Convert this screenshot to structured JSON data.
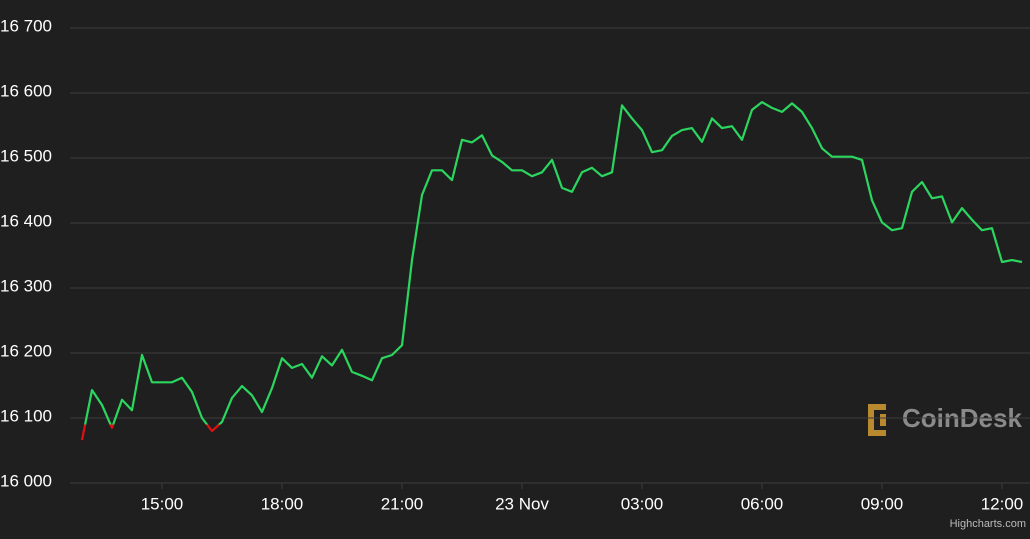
{
  "chart_data": {
    "type": "line",
    "x": [
      13,
      13.25,
      13.5,
      13.75,
      14,
      14.25,
      14.5,
      14.75,
      15,
      15.25,
      15.5,
      15.75,
      16,
      16.25,
      16.5,
      16.75,
      17,
      17.25,
      17.5,
      17.75,
      18,
      18.25,
      18.5,
      18.75,
      19,
      19.25,
      19.5,
      19.75,
      20,
      20.25,
      20.5,
      20.75,
      21,
      21.25,
      21.5,
      21.75,
      22,
      22.25,
      22.5,
      22.75,
      23,
      23.25,
      23.5,
      23.75,
      24,
      24.25,
      24.5,
      24.75,
      25,
      25.25,
      25.5,
      25.75,
      26,
      26.25,
      26.5,
      26.75,
      27,
      27.25,
      27.5,
      27.75,
      28,
      28.25,
      28.5,
      28.75,
      29,
      29.25,
      29.5,
      29.75,
      30,
      30.25,
      30.5,
      30.75,
      31,
      31.25,
      31.5,
      31.75,
      32,
      32.25,
      32.5,
      32.75,
      33,
      33.25,
      33.5,
      33.75,
      34,
      34.25,
      34.5,
      34.75,
      35,
      35.25,
      35.5,
      35.75,
      36,
      36.25,
      36.5
    ],
    "series": [
      {
        "color": "#2bd65f",
        "values": [
          16066,
          16143,
          16120,
          16085,
          16128,
          16112,
          16197,
          16155,
          16155,
          16155,
          16162,
          16140,
          16100,
          16080,
          16094,
          16131,
          16149,
          16135,
          16109,
          16146,
          16192,
          16177,
          16183,
          16162,
          16195,
          16181,
          16205,
          16171,
          16165,
          16158,
          16192,
          16197,
          16212,
          16343,
          16443,
          16481,
          16481,
          16466,
          16528,
          16524,
          16535,
          16504,
          16494,
          16481,
          16481,
          16472,
          16478,
          16497,
          16454,
          16448,
          16478,
          16485,
          16472,
          16478,
          16581,
          16561,
          16543,
          16509,
          16512,
          16534,
          16543,
          16546,
          16525,
          16561,
          16546,
          16549,
          16528,
          16574,
          16586,
          16577,
          16571,
          16584,
          16571,
          16546,
          16515,
          16502,
          16502,
          16502,
          16497,
          16435,
          16401,
          16389,
          16392,
          16448,
          16463,
          16438,
          16441,
          16401,
          16423,
          16405,
          16389,
          16392,
          16340,
          16343,
          16340
        ]
      }
    ],
    "threshold": 16090,
    "negative_color": "#e01010",
    "xlim": [
      12.95,
      36.7
    ],
    "xticks": [
      {
        "value": 15,
        "label": "15:00"
      },
      {
        "value": 18,
        "label": "18:00"
      },
      {
        "value": 21,
        "label": "21:00"
      },
      {
        "value": 24,
        "label": "23 Nov"
      },
      {
        "value": 27,
        "label": "03:00"
      },
      {
        "value": 30,
        "label": "06:00"
      },
      {
        "value": 33,
        "label": "09:00"
      },
      {
        "value": 36,
        "label": "12:00"
      }
    ],
    "ylim": [
      16000,
      16700
    ],
    "yticks": [
      {
        "value": 16000,
        "label": "16 000"
      },
      {
        "value": 16100,
        "label": "16 100"
      },
      {
        "value": 16200,
        "label": "16 200"
      },
      {
        "value": 16300,
        "label": "16 300"
      },
      {
        "value": 16400,
        "label": "16 400"
      },
      {
        "value": 16500,
        "label": "16 500"
      },
      {
        "value": 16600,
        "label": "16 600"
      },
      {
        "value": 16700,
        "label": "16 700"
      }
    ],
    "grid": true,
    "watermark": "CoinDesk",
    "credits": "Highcharts.com"
  }
}
